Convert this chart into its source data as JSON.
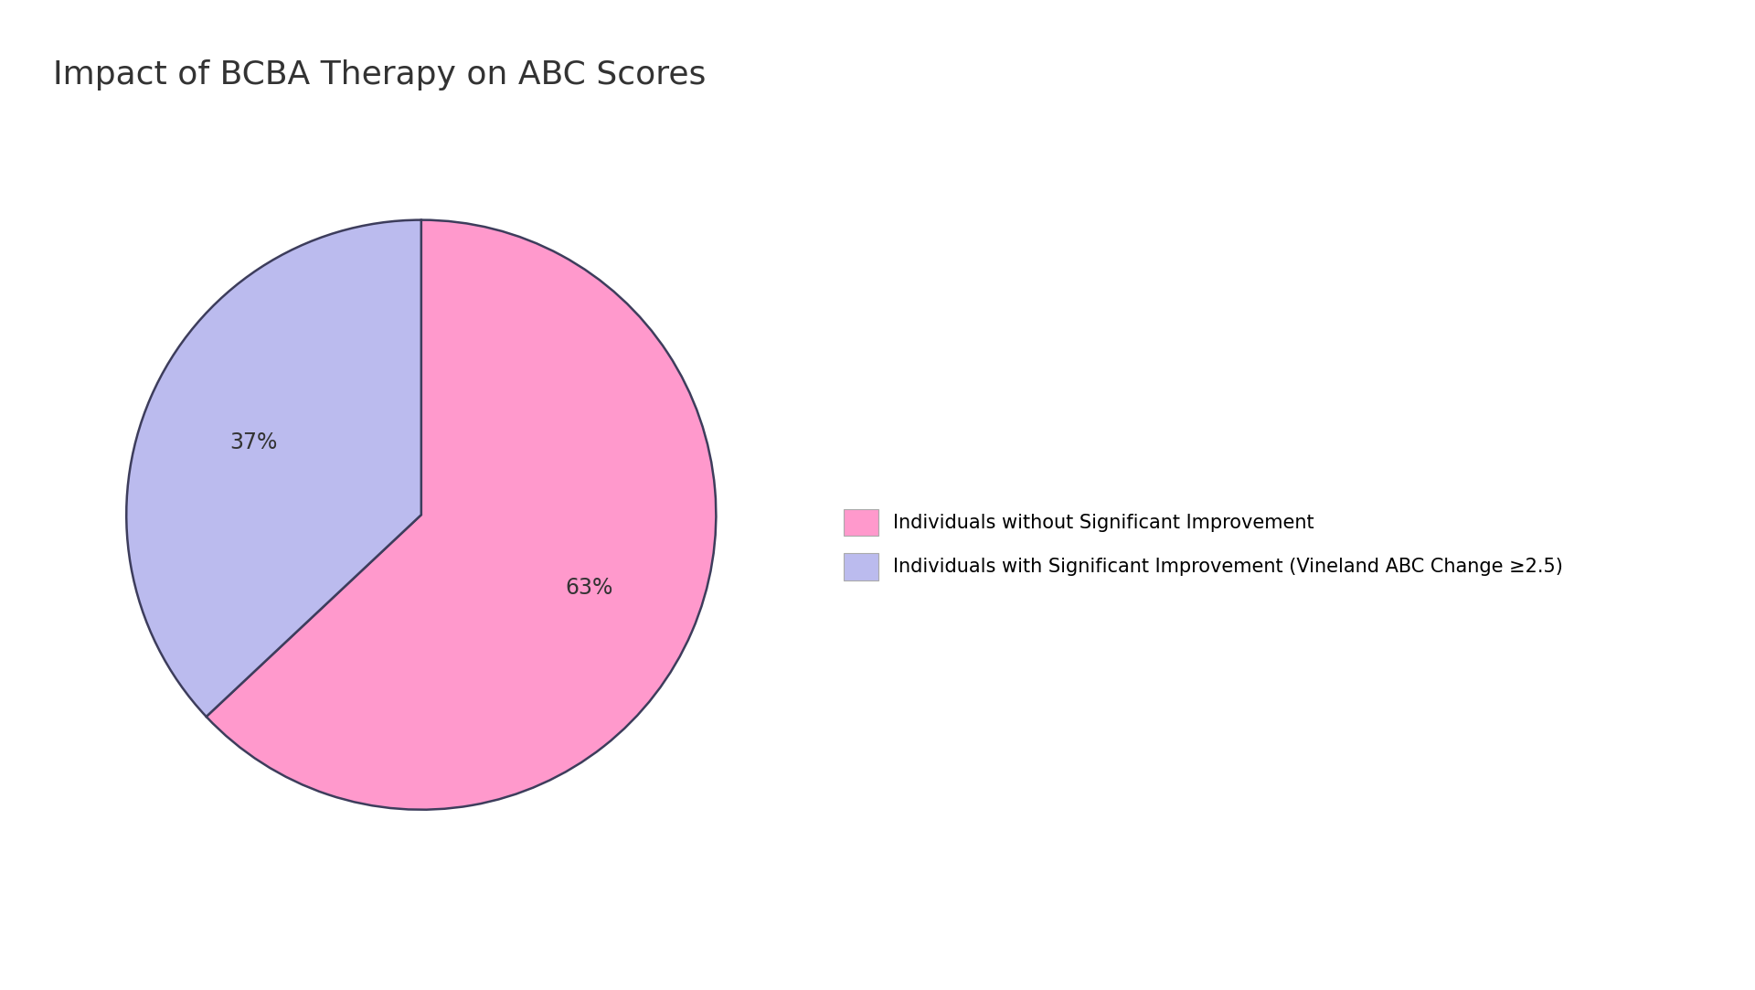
{
  "title": "Impact of BCBA Therapy on ABC Scores",
  "slices": [
    63,
    37
  ],
  "pct_labels": [
    "63%",
    "37%"
  ],
  "colors": [
    "#FF99CC",
    "#BBBBEE"
  ],
  "edge_color": "#3d3d5c",
  "legend_labels": [
    "Individuals without Significant Improvement",
    "Individuals with Significant Improvement (Vineland ABC Change ≥2.5)"
  ],
  "background_color": "#ffffff",
  "title_fontsize": 26,
  "label_fontsize": 17,
  "legend_fontsize": 15,
  "startangle": 90
}
